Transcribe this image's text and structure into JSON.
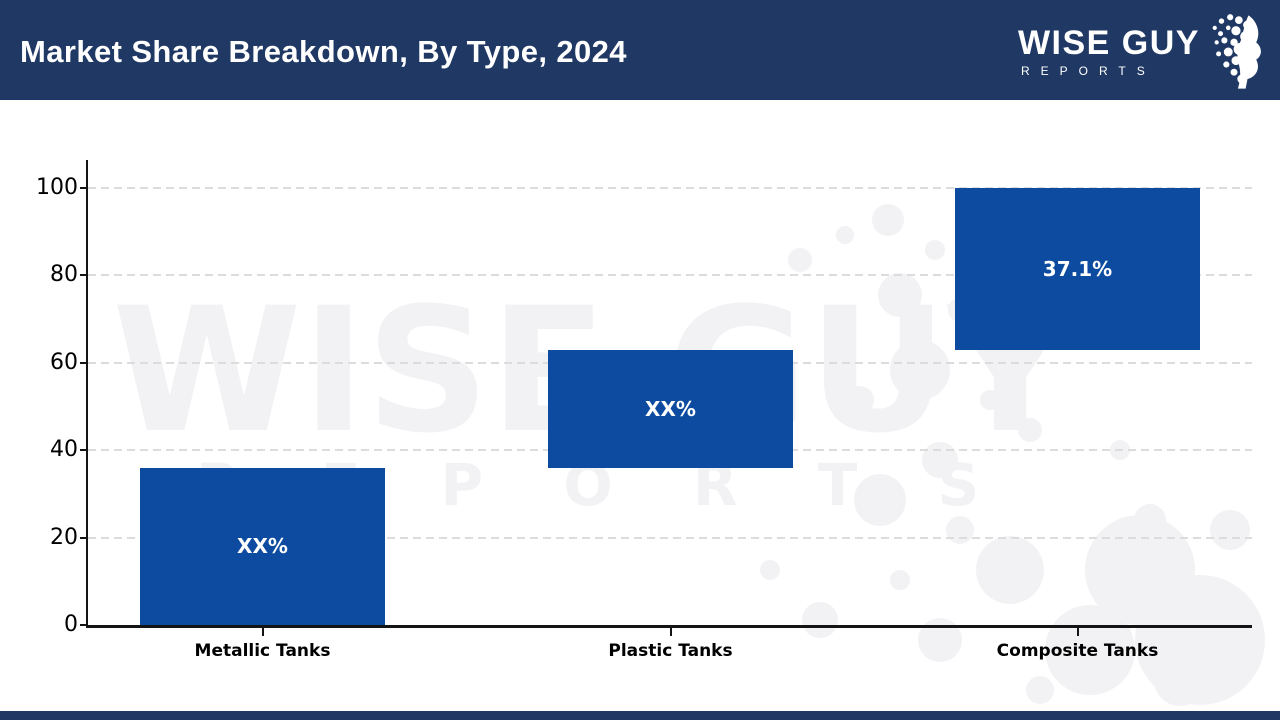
{
  "header": {
    "title": "Market Share Breakdown, By Type, 2024",
    "logo": {
      "line1": "WISE GUY",
      "line2": "REPORTS"
    }
  },
  "watermark": {
    "line1": "WISE GUY",
    "line2": "R E P O R T S"
  },
  "colors": {
    "navy": "#203864",
    "bar": "#0c4ba0",
    "grid": "#dcdcdc",
    "axis": "#141414",
    "watermark": "#f2f2f4",
    "title_text": "#ffffff",
    "bar_label_text": "#ffffff"
  },
  "chart_data": {
    "type": "bar",
    "variant": "floating-segment-breakdown",
    "title": "Market Share Breakdown, By Type, 2024",
    "xlabel": "",
    "ylabel": "",
    "categories": [
      "Metallic Tanks",
      "Plastic Tanks",
      "Composite Tanks"
    ],
    "bars": [
      {
        "category": "Metallic Tanks",
        "start": 0,
        "end": 35.9,
        "value_label": "XX%"
      },
      {
        "category": "Plastic Tanks",
        "start": 35.9,
        "end": 62.9,
        "value_label": "XX%"
      },
      {
        "category": "Composite Tanks",
        "start": 62.9,
        "end": 100,
        "value_label": "37.1%"
      }
    ],
    "segment_sizes_estimated": [
      35.9,
      27.0,
      37.1
    ],
    "y_ticks": [
      0,
      20,
      40,
      60,
      80,
      100
    ],
    "ylim": [
      0,
      105
    ],
    "grid": "horizontal-dashed",
    "legend": "none"
  }
}
